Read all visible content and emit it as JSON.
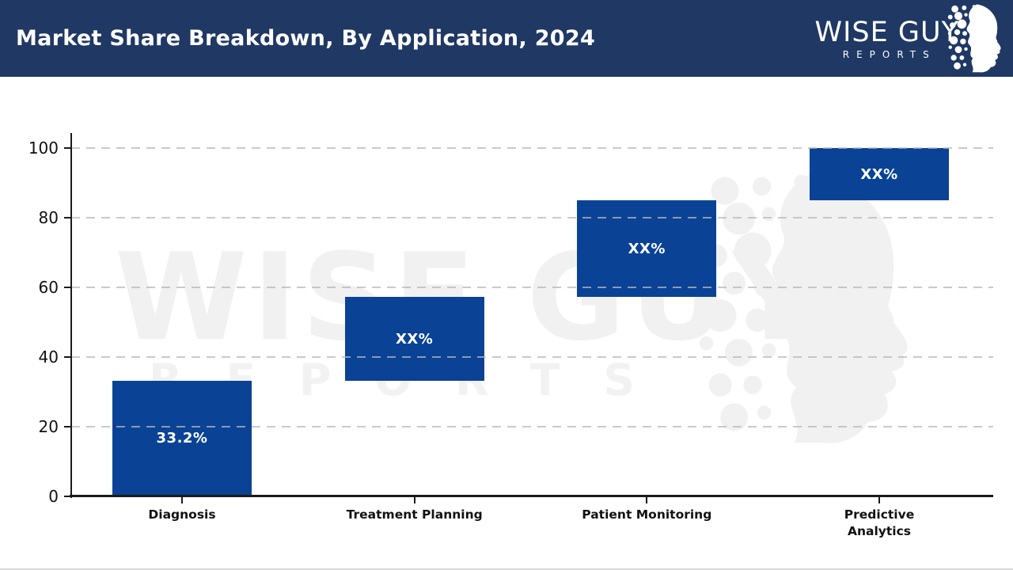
{
  "header": {
    "title": "Market Share Breakdown, By Application, 2024",
    "logo": {
      "line1": "WISE GUY",
      "line2": "REPORTS"
    }
  },
  "watermark": {
    "line1": "WISE GUY",
    "line2": "REPORTS"
  },
  "colors": {
    "header_bg": "#1f3864",
    "bar": "#0a4296",
    "grid": "#bbbbbb",
    "axis": "#1a1a1a",
    "watermark": "#f1f1f2",
    "bar_label": "#ffffff"
  },
  "chart_data": {
    "type": "bar",
    "subtype": "waterfall",
    "title": "Market Share Breakdown, By Application, 2024",
    "categories": [
      "Diagnosis",
      "Treatment Planning",
      "Patient Monitoring",
      "Predictive\nAnalytics"
    ],
    "segments": [
      {
        "category": "Diagnosis",
        "from": 0,
        "to": 33.2,
        "label": "33.2%"
      },
      {
        "category": "Treatment Planning",
        "from": 33.2,
        "to": 57.2,
        "label": "XX%"
      },
      {
        "category": "Patient Monitoring",
        "from": 57.2,
        "to": 85,
        "label": "XX%"
      },
      {
        "category": "Predictive Analytics",
        "from": 85,
        "to": 100,
        "label": "XX%"
      }
    ],
    "xlabel": "",
    "ylabel": "",
    "ylim": [
      0,
      100
    ],
    "yticks": [
      0,
      20,
      40,
      60,
      80,
      100
    ],
    "grid": "horizontal-dashed",
    "legend": "none"
  }
}
